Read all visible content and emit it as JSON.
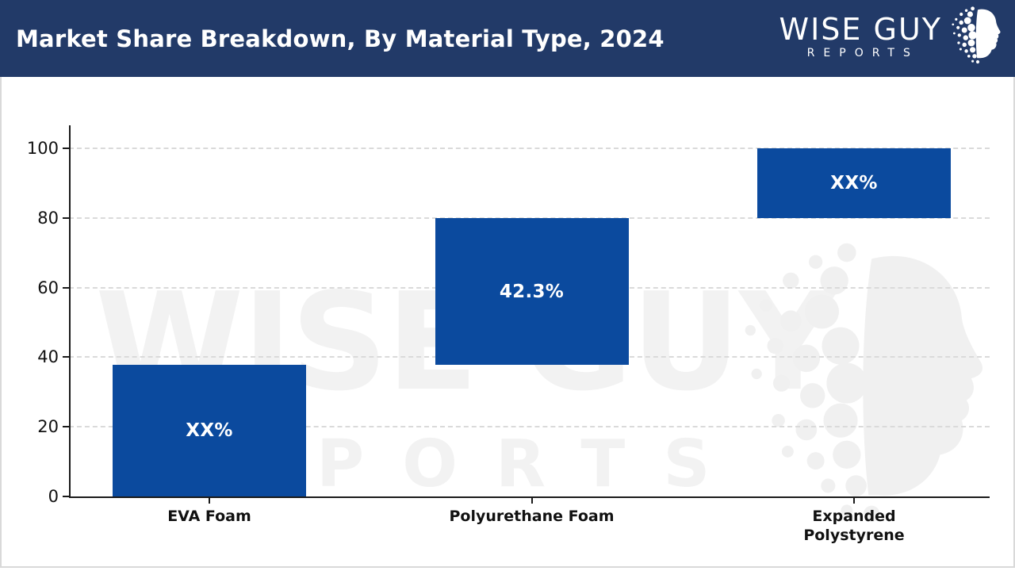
{
  "header": {
    "title": "Market Share Breakdown, By Material Type, 2024",
    "logo": {
      "name": "WISE GUY",
      "subtitle": "REPORTS",
      "head_icon": "dotted-face-profile"
    }
  },
  "watermark": {
    "line1": "WISE GUY",
    "line2": "REPORTS",
    "head_icon": "dotted-face-profile"
  },
  "chart_data": {
    "type": "bar",
    "subtype": "floating-column",
    "title": "Market Share Breakdown, By Material Type, 2024",
    "xlabel": "",
    "ylabel": "",
    "categories": [
      "EVA Foam",
      "Polyurethane Foam",
      "Expanded\nPolystyrene"
    ],
    "series": [
      {
        "name": "Market share (%)",
        "bars": [
          {
            "category": "EVA Foam",
            "start": 0,
            "end": 37.7,
            "label": "XX%"
          },
          {
            "category": "Polyurethane Foam",
            "start": 37.7,
            "end": 80,
            "label": "42.3%"
          },
          {
            "category": "Expanded Polystyrene",
            "start": 80,
            "end": 100,
            "label": "XX%"
          }
        ]
      }
    ],
    "yticks": [
      0,
      20,
      40,
      60,
      80,
      100
    ],
    "ylim": [
      0,
      106
    ],
    "grid": "horizontal-dashed",
    "legend": "none",
    "colors": {
      "bar": "#0b4a9e",
      "bar_label": "#ffffff",
      "gridline": "#dadada",
      "axis": "#1a1a1a",
      "header_bg": "#223a68",
      "watermark": "#f2f2f2",
      "frame_border": "#d9d9d9"
    }
  }
}
